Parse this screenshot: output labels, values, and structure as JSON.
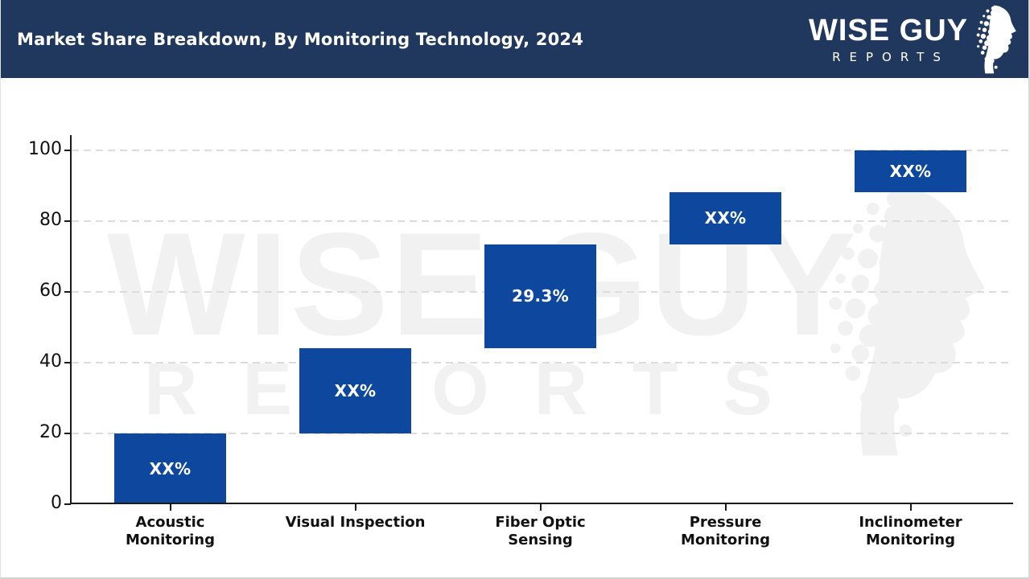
{
  "header": {
    "title": "Market Share Breakdown, By Monitoring Technology, 2024",
    "logo": {
      "name": "WISE GUY",
      "subtitle": "REPORTS"
    }
  },
  "watermark": {
    "name": "WISE GUY",
    "subtitle": "REPORTS"
  },
  "chart_data": {
    "type": "bar",
    "subtype": "waterfall",
    "title": "Market Share Breakdown, By Monitoring Technology, 2024",
    "units": "%",
    "categories": [
      "Acoustic Monitoring",
      "Visual Inspection",
      "Fiber Optic Sensing",
      "Pressure Monitoring",
      "Inclinometer Monitoring"
    ],
    "category_lines": [
      [
        "Acoustic",
        "Monitoring"
      ],
      [
        "Visual Inspection"
      ],
      [
        "Fiber Optic",
        "Sensing"
      ],
      [
        "Pressure",
        "Monitoring"
      ],
      [
        "Inclinometer",
        "Monitoring"
      ]
    ],
    "segments": [
      {
        "category": "Acoustic Monitoring",
        "label": "XX%",
        "start": 0,
        "end": 20
      },
      {
        "category": "Visual Inspection",
        "label": "XX%",
        "start": 20,
        "end": 44.2
      },
      {
        "category": "Fiber Optic Sensing",
        "label": "29.3%",
        "start": 44.2,
        "end": 73.5
      },
      {
        "category": "Pressure Monitoring",
        "label": "XX%",
        "start": 73.5,
        "end": 88.2
      },
      {
        "category": "Inclinometer Monitoring",
        "label": "XX%",
        "start": 88.2,
        "end": 100
      }
    ],
    "yticks": [
      0,
      20,
      40,
      60,
      80,
      100
    ],
    "ylim": [
      0,
      104
    ],
    "grid": "horizontal-dashed",
    "legend": "none",
    "bar_color": "#0d489e",
    "bar_label_color": "#ffffff",
    "header_color": "#21385e"
  }
}
